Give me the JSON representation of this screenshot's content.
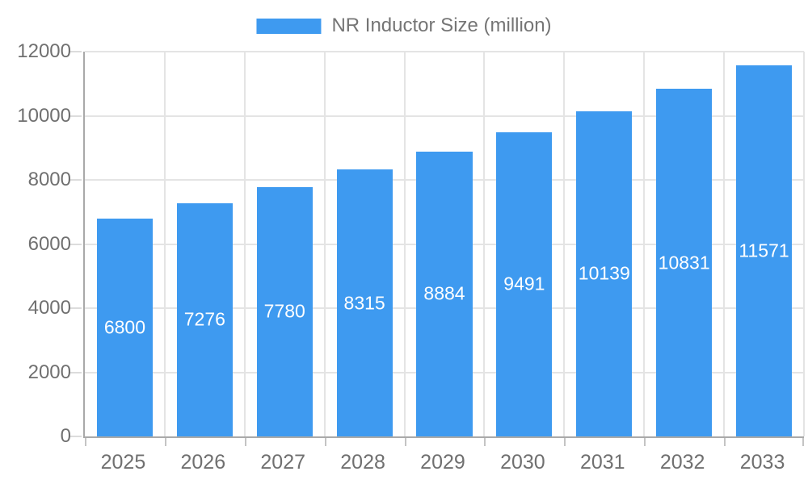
{
  "chart_data": {
    "type": "bar",
    "title": "",
    "legend": "NR Inductor Size (million)",
    "legend_position": "top",
    "categories": [
      "2025",
      "2026",
      "2027",
      "2028",
      "2029",
      "2030",
      "2031",
      "2032",
      "2033"
    ],
    "series": [
      {
        "name": "NR Inductor Size (million)",
        "values": [
          6800,
          7276,
          7780,
          8315,
          8884,
          9491,
          10139,
          10831,
          11571
        ]
      }
    ],
    "data_labels_visible": true,
    "xlabel": "",
    "ylabel": "",
    "ylim": [
      0,
      12000
    ],
    "yticks": [
      0,
      2000,
      4000,
      6000,
      8000,
      10000,
      12000
    ],
    "grid": true,
    "colors": {
      "bar": "#3e9af0",
      "grid": "#e4e4e4",
      "axis": "#a9a9a9",
      "y_tick_mark": "#dcdcdc",
      "x_tick_mark": "#c4c4c4",
      "axis_text": "#707070",
      "bar_label_text": "#ffffff",
      "legend_text": "#757575"
    }
  }
}
